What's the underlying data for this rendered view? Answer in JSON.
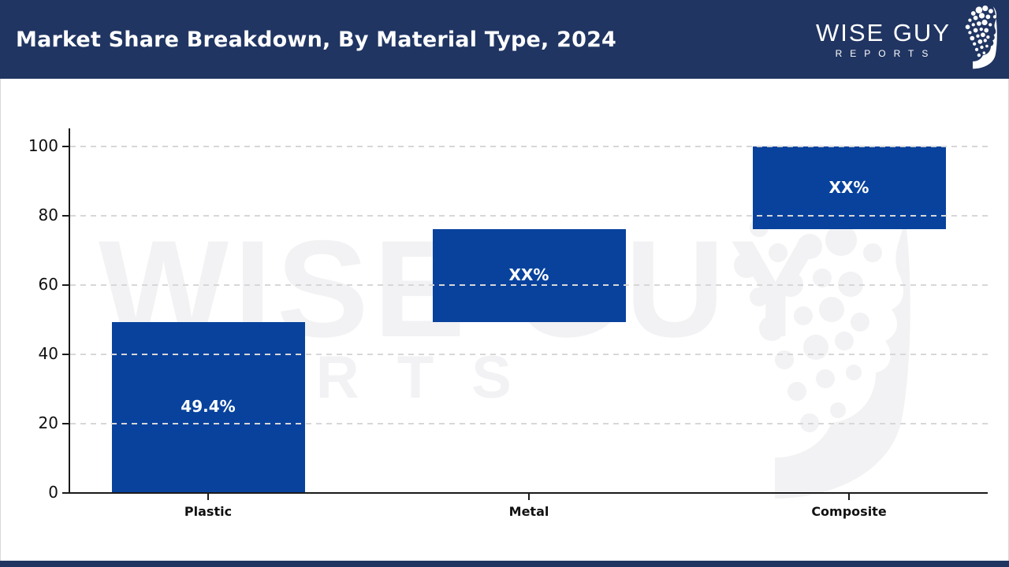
{
  "header": {
    "title": "Market Share Breakdown, By Material Type, 2024",
    "logo": {
      "line1": "WISE GUY",
      "line2": "REPORTS"
    }
  },
  "watermark": {
    "line1": "WISE GUY",
    "line2": "PORTS"
  },
  "chart_data": {
    "type": "bar",
    "subtype": "waterfall-floating-bars",
    "title": "Market Share Breakdown, By Material Type, 2024",
    "categories": [
      "Plastic",
      "Metal",
      "Composite"
    ],
    "segments": [
      {
        "category": "Plastic",
        "start": 0,
        "end": 49.4,
        "label": "49.4%"
      },
      {
        "category": "Metal",
        "start": 49.4,
        "end": 76.1,
        "label": "XX%"
      },
      {
        "category": "Composite",
        "start": 76.1,
        "end": 100,
        "label": "XX%"
      }
    ],
    "yticks": [
      0,
      20,
      40,
      60,
      80,
      100
    ],
    "ylim": [
      0,
      105
    ],
    "xlabel": "",
    "ylabel": "",
    "grid": "dashed-horizontal",
    "legend": "none",
    "bar_color": "#08429d",
    "bar_label_color": "#ffffff"
  },
  "colors": {
    "header_bg": "#203562",
    "footer_bg": "#203562",
    "grid": "#d7d7d7",
    "axis": "#1a1a1a",
    "watermark": "#f2f2f4"
  }
}
